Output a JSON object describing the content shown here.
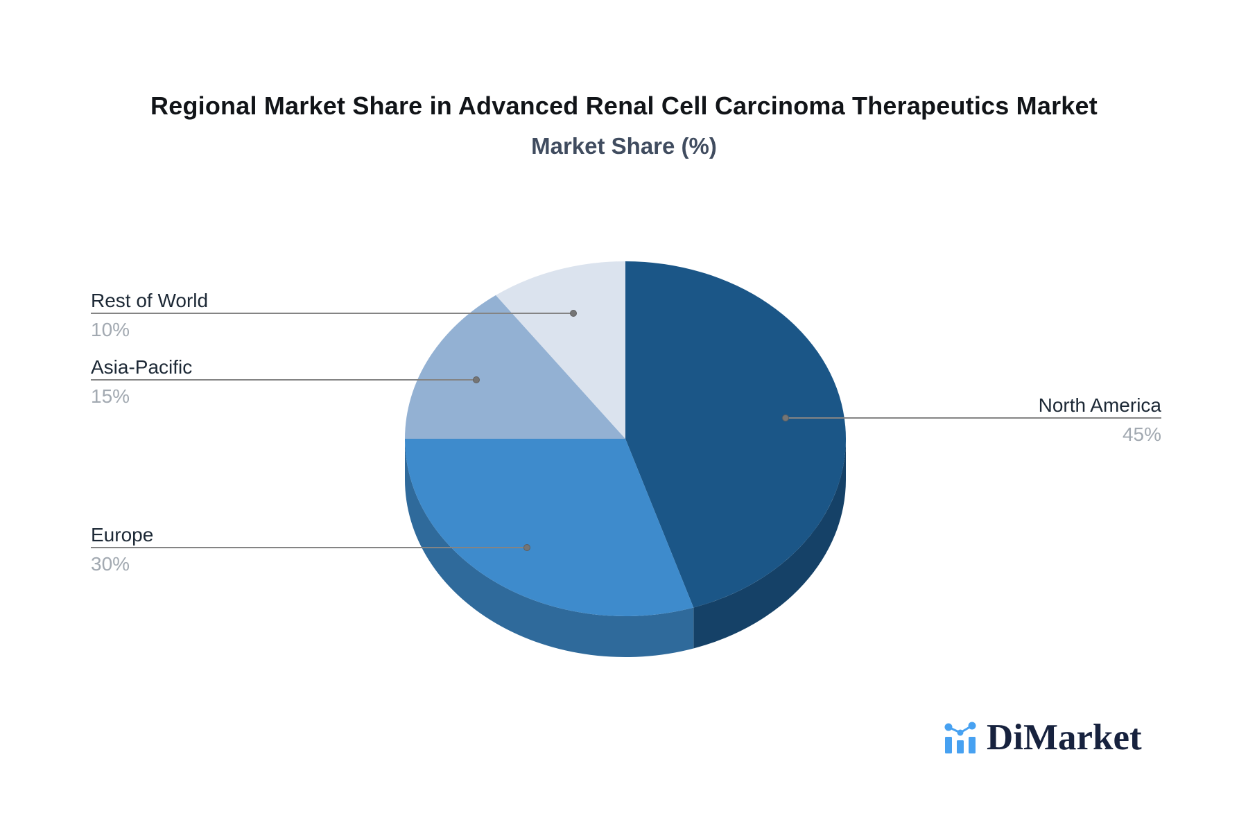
{
  "header": {
    "title": "Regional Market Share in Advanced Renal Cell Carcinoma Therapeutics Market",
    "subtitle": "Market Share (%)"
  },
  "chart_data": {
    "type": "pie",
    "style": "pie-3d",
    "title": "Regional Market Share in Advanced Renal Cell Carcinoma Therapeutics Market",
    "subtitle": "Market Share (%)",
    "unit": "%",
    "start_angle_deg": -90,
    "direction": "clockwise",
    "legend": "callout-labels",
    "categories": [
      "North America",
      "Europe",
      "Asia-Pacific",
      "Rest of World"
    ],
    "values": [
      45,
      30,
      15,
      10
    ],
    "value_labels": [
      "45%",
      "30%",
      "15%",
      "10%"
    ],
    "colors": [
      "#1B5687",
      "#3E8BCC",
      "#93B1D3",
      "#DBE3EE"
    ],
    "side_darken_factor": 0.76,
    "background": "#ffffff"
  },
  "callouts": {
    "rest_of_world": {
      "name": "Rest of World",
      "pct": "10%"
    },
    "asia_pacific": {
      "name": "Asia-Pacific",
      "pct": "15%"
    },
    "europe": {
      "name": "Europe",
      "pct": "30%"
    },
    "north_america": {
      "name": "North America",
      "pct": "45%"
    }
  },
  "branding": {
    "logo_text": "DiMarket",
    "logo_icon": "bar-line-chart-icon",
    "text_color": "#17223E",
    "icon_color": "#47A1F1"
  }
}
